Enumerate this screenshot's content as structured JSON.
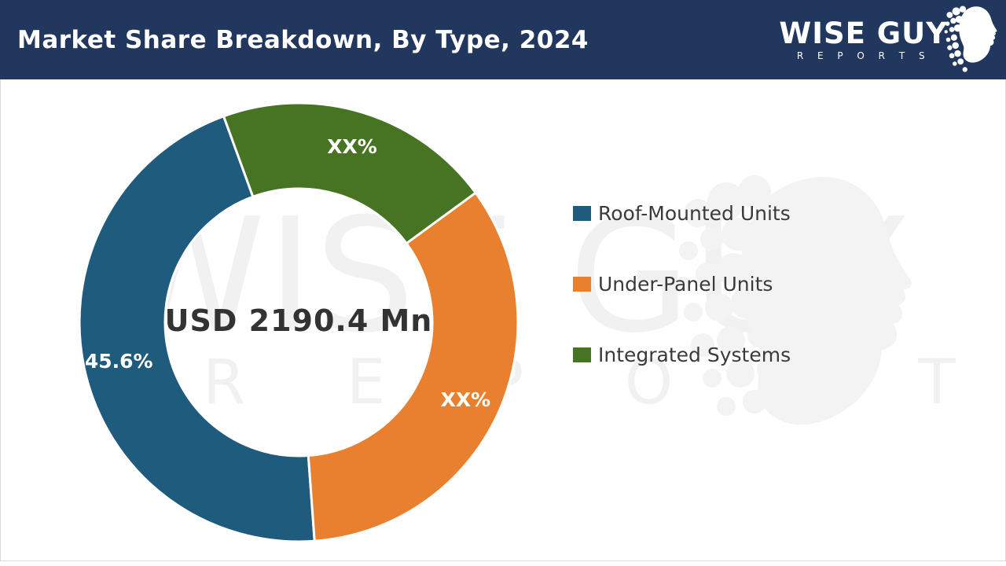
{
  "header": {
    "title": "Market Share Breakdown, By Type, 2024",
    "logo_name": "WISE GUY",
    "logo_sub": "R E P O R T S"
  },
  "watermark": {
    "line1": "WISE GUY",
    "line2": "R E P O R T S"
  },
  "colors": {
    "header_bg": "#22375e",
    "blue": "#1f5b7d",
    "orange": "#e8802f",
    "green": "#467422",
    "center_text": "#333333",
    "legend_text": "#3a3a3a",
    "watermark": "#f1f1f1"
  },
  "chart_data": {
    "type": "pie",
    "subtype": "donut",
    "title": "Market Share Breakdown, By Type, 2024",
    "center_label": "USD 2190.4 Mn",
    "start_angle_deg": 110,
    "direction": "counterclockwise",
    "donut_hole_ratio": 0.61,
    "legend_position": "right",
    "slices": [
      {
        "label": "Roof-Mounted Units",
        "value_pct": 45.6,
        "display_label": "45.6%",
        "color": "#1f5b7d"
      },
      {
        "label": "Under-Panel Units",
        "value_pct": 33.9,
        "display_label": "XX%",
        "color": "#e8802f"
      },
      {
        "label": "Integrated Systems",
        "value_pct": 20.5,
        "display_label": "XX%",
        "color": "#467422"
      }
    ]
  }
}
